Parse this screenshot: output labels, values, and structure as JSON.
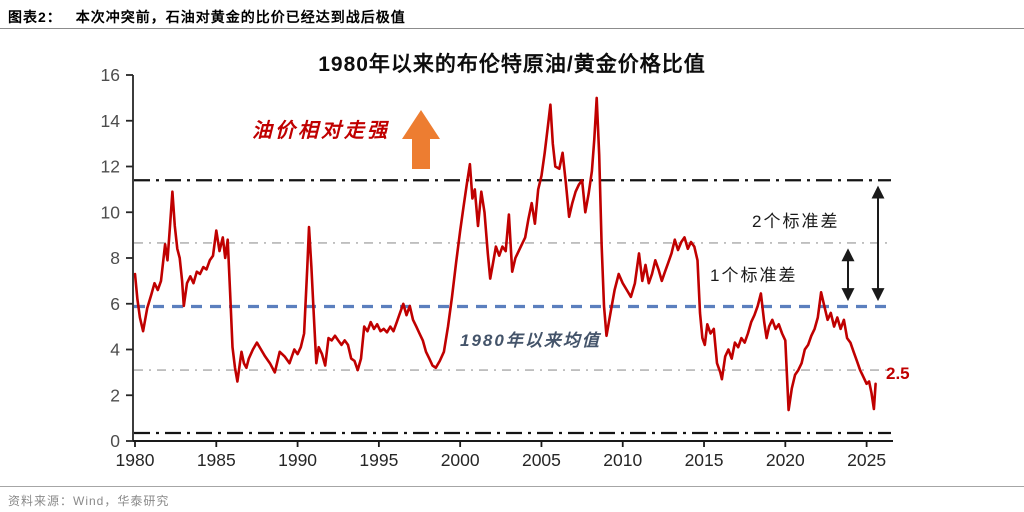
{
  "header": {
    "figure_no": "图表2：",
    "caption": "本次冲突前，石油对黄金的比价已经达到战后极值"
  },
  "footer": {
    "source": "资料来源：Wind，华泰研究"
  },
  "chart_data": {
    "type": "line",
    "title": "1980年以来的布伦特原油/黄金价格比值",
    "series_name": "布伦特原油/黄金价格比值",
    "xlim": [
      1980,
      2026.5
    ],
    "ylim": [
      0,
      16
    ],
    "yticks": [
      0,
      2,
      4,
      6,
      8,
      10,
      12,
      14,
      16
    ],
    "xticks": [
      1980,
      1985,
      1990,
      1995,
      2000,
      2005,
      2010,
      2015,
      2020,
      2025
    ],
    "grid": false,
    "legend": "none",
    "line_color": "#C00000",
    "arrow_color": "#ED7D31",
    "reference_lines": [
      {
        "name": "plus-2sd",
        "value": 11.4,
        "style": "black-dashdot"
      },
      {
        "name": "plus-1sd",
        "value": 8.66,
        "style": "gray-dashdot"
      },
      {
        "name": "mean",
        "value": 5.88,
        "style": "blue-dashed"
      },
      {
        "name": "minus-1sd",
        "value": 3.1,
        "style": "gray-dashdot"
      },
      {
        "name": "minus-2sd",
        "value": 0.35,
        "style": "black-dashdot"
      }
    ],
    "annotations": {
      "strength_label": "油价相对走强",
      "mean_label": "1980年以来均值",
      "sd2_label": "2个标准差",
      "sd1_label": "1个标准差",
      "end_value_label": "2.5"
    },
    "points": [
      [
        1980,
        7.3
      ],
      [
        1980.15,
        6.2
      ],
      [
        1980.3,
        5.4
      ],
      [
        1980.5,
        4.8
      ],
      [
        1980.75,
        5.8
      ],
      [
        1981,
        6.4
      ],
      [
        1981.2,
        6.9
      ],
      [
        1981.4,
        6.6
      ],
      [
        1981.6,
        7
      ],
      [
        1981.85,
        8.6
      ],
      [
        1982,
        7.9
      ],
      [
        1982.15,
        9.4
      ],
      [
        1982.3,
        10.9
      ],
      [
        1982.45,
        9.4
      ],
      [
        1982.6,
        8.4
      ],
      [
        1982.75,
        8
      ],
      [
        1982.9,
        7
      ],
      [
        1983,
        5.9
      ],
      [
        1983.2,
        6.9
      ],
      [
        1983.4,
        7.2
      ],
      [
        1983.6,
        6.9
      ],
      [
        1983.8,
        7.4
      ],
      [
        1984,
        7.3
      ],
      [
        1984.2,
        7.6
      ],
      [
        1984.4,
        7.5
      ],
      [
        1984.6,
        7.9
      ],
      [
        1984.8,
        8.1
      ],
      [
        1985,
        9.2
      ],
      [
        1985.2,
        8.3
      ],
      [
        1985.4,
        8.9
      ],
      [
        1985.55,
        8
      ],
      [
        1985.7,
        8.8
      ],
      [
        1985.85,
        6.5
      ],
      [
        1986,
        4.1
      ],
      [
        1986.15,
        3.2
      ],
      [
        1986.3,
        2.6
      ],
      [
        1986.45,
        3.4
      ],
      [
        1986.55,
        3.9
      ],
      [
        1986.7,
        3.4
      ],
      [
        1986.85,
        3.2
      ],
      [
        1987,
        3.6
      ],
      [
        1987.25,
        4
      ],
      [
        1987.5,
        4.3
      ],
      [
        1987.75,
        4
      ],
      [
        1988,
        3.7
      ],
      [
        1988.3,
        3.4
      ],
      [
        1988.6,
        3
      ],
      [
        1988.9,
        3.9
      ],
      [
        1989.2,
        3.7
      ],
      [
        1989.5,
        3.4
      ],
      [
        1989.8,
        4
      ],
      [
        1990,
        3.8
      ],
      [
        1990.2,
        4.1
      ],
      [
        1990.4,
        4.7
      ],
      [
        1990.6,
        7.6
      ],
      [
        1990.7,
        9.35
      ],
      [
        1990.85,
        7.6
      ],
      [
        1991,
        5.5
      ],
      [
        1991.15,
        3.4
      ],
      [
        1991.3,
        4.1
      ],
      [
        1991.5,
        3.8
      ],
      [
        1991.7,
        3.3
      ],
      [
        1991.9,
        4.5
      ],
      [
        1992.1,
        4.4
      ],
      [
        1992.3,
        4.6
      ],
      [
        1992.5,
        4.4
      ],
      [
        1992.7,
        4.2
      ],
      [
        1992.9,
        4.4
      ],
      [
        1993.1,
        4.2
      ],
      [
        1993.3,
        3.6
      ],
      [
        1993.5,
        3.5
      ],
      [
        1993.7,
        3.1
      ],
      [
        1993.9,
        3.6
      ],
      [
        1994.1,
        5
      ],
      [
        1994.3,
        4.8
      ],
      [
        1994.5,
        5.2
      ],
      [
        1994.7,
        4.9
      ],
      [
        1994.9,
        5.1
      ],
      [
        1995.1,
        4.8
      ],
      [
        1995.3,
        4.9
      ],
      [
        1995.5,
        4.75
      ],
      [
        1995.7,
        5
      ],
      [
        1995.9,
        4.8
      ],
      [
        1996.1,
        5.2
      ],
      [
        1996.3,
        5.6
      ],
      [
        1996.5,
        6
      ],
      [
        1996.7,
        5.5
      ],
      [
        1996.9,
        5.9
      ],
      [
        1997.1,
        5.3
      ],
      [
        1997.3,
        5
      ],
      [
        1997.5,
        4.7
      ],
      [
        1997.7,
        4.4
      ],
      [
        1997.9,
        3.9
      ],
      [
        1998.1,
        3.6
      ],
      [
        1998.3,
        3.3
      ],
      [
        1998.5,
        3.2
      ],
      [
        1998.75,
        3.5
      ],
      [
        1999,
        3.9
      ],
      [
        1999.25,
        5
      ],
      [
        1999.5,
        6.3
      ],
      [
        1999.75,
        7.8
      ],
      [
        2000,
        9.2
      ],
      [
        2000.2,
        10.2
      ],
      [
        2000.4,
        11.2
      ],
      [
        2000.6,
        12.1
      ],
      [
        2000.75,
        10.6
      ],
      [
        2000.9,
        11
      ],
      [
        2001.1,
        9.4
      ],
      [
        2001.3,
        10.9
      ],
      [
        2001.5,
        10
      ],
      [
        2001.7,
        8.2
      ],
      [
        2001.85,
        7.1
      ],
      [
        2002,
        7.7
      ],
      [
        2002.2,
        8.5
      ],
      [
        2002.4,
        8.1
      ],
      [
        2002.6,
        8.5
      ],
      [
        2002.8,
        8.3
      ],
      [
        2003,
        9.9
      ],
      [
        2003.2,
        7.4
      ],
      [
        2003.4,
        8
      ],
      [
        2003.6,
        8.3
      ],
      [
        2003.8,
        8.6
      ],
      [
        2004,
        8.9
      ],
      [
        2004.2,
        9.7
      ],
      [
        2004.4,
        10.4
      ],
      [
        2004.6,
        9.5
      ],
      [
        2004.8,
        11
      ],
      [
        2005,
        11.6
      ],
      [
        2005.2,
        12.6
      ],
      [
        2005.4,
        13.8
      ],
      [
        2005.55,
        14.7
      ],
      [
        2005.7,
        13
      ],
      [
        2005.85,
        12
      ],
      [
        2006.1,
        11.9
      ],
      [
        2006.3,
        12.6
      ],
      [
        2006.5,
        11.3
      ],
      [
        2006.7,
        9.8
      ],
      [
        2006.9,
        10.4
      ],
      [
        2007.1,
        10.9
      ],
      [
        2007.3,
        11.2
      ],
      [
        2007.5,
        11.4
      ],
      [
        2007.7,
        10
      ],
      [
        2007.9,
        10.8
      ],
      [
        2008.1,
        11.8
      ],
      [
        2008.25,
        13.2
      ],
      [
        2008.4,
        15
      ],
      [
        2008.55,
        12.5
      ],
      [
        2008.7,
        8.6
      ],
      [
        2008.85,
        5.9
      ],
      [
        2009,
        4.6
      ],
      [
        2009.25,
        5.6
      ],
      [
        2009.5,
        6.6
      ],
      [
        2009.75,
        7.3
      ],
      [
        2010,
        6.9
      ],
      [
        2010.25,
        6.6
      ],
      [
        2010.5,
        6.3
      ],
      [
        2010.75,
        6.9
      ],
      [
        2011,
        8.2
      ],
      [
        2011.2,
        7
      ],
      [
        2011.4,
        7.7
      ],
      [
        2011.6,
        6.9
      ],
      [
        2011.8,
        7.3
      ],
      [
        2012,
        7.9
      ],
      [
        2012.2,
        7.5
      ],
      [
        2012.4,
        7
      ],
      [
        2012.6,
        7.4
      ],
      [
        2012.8,
        7.8
      ],
      [
        2013,
        8.2
      ],
      [
        2013.2,
        8.8
      ],
      [
        2013.4,
        8.35
      ],
      [
        2013.6,
        8.7
      ],
      [
        2013.8,
        8.9
      ],
      [
        2014,
        8.4
      ],
      [
        2014.2,
        8.7
      ],
      [
        2014.4,
        8.5
      ],
      [
        2014.6,
        7.9
      ],
      [
        2014.75,
        5.6
      ],
      [
        2014.9,
        4.5
      ],
      [
        2015.05,
        4.2
      ],
      [
        2015.2,
        5.1
      ],
      [
        2015.4,
        4.7
      ],
      [
        2015.6,
        4.9
      ],
      [
        2015.8,
        3.4
      ],
      [
        2016,
        3
      ],
      [
        2016.1,
        2.7
      ],
      [
        2016.3,
        3.7
      ],
      [
        2016.5,
        4
      ],
      [
        2016.7,
        3.6
      ],
      [
        2016.9,
        4.3
      ],
      [
        2017.1,
        4.1
      ],
      [
        2017.3,
        4.5
      ],
      [
        2017.5,
        4.3
      ],
      [
        2017.7,
        4.7
      ],
      [
        2017.9,
        5.2
      ],
      [
        2018.1,
        5.5
      ],
      [
        2018.3,
        5.9
      ],
      [
        2018.5,
        6.45
      ],
      [
        2018.7,
        5.2
      ],
      [
        2018.85,
        4.5
      ],
      [
        2019,
        5
      ],
      [
        2019.2,
        5.3
      ],
      [
        2019.4,
        4.9
      ],
      [
        2019.6,
        5.1
      ],
      [
        2019.8,
        4.7
      ],
      [
        2020,
        4.4
      ],
      [
        2020.2,
        1.35
      ],
      [
        2020.4,
        2.3
      ],
      [
        2020.6,
        2.9
      ],
      [
        2020.8,
        3.1
      ],
      [
        2021,
        3.4
      ],
      [
        2021.2,
        4
      ],
      [
        2021.4,
        4.2
      ],
      [
        2021.6,
        4.6
      ],
      [
        2021.8,
        4.9
      ],
      [
        2022,
        5.4
      ],
      [
        2022.2,
        6.5
      ],
      [
        2022.4,
        5.9
      ],
      [
        2022.6,
        5.3
      ],
      [
        2022.8,
        5.6
      ],
      [
        2023,
        5
      ],
      [
        2023.2,
        5.4
      ],
      [
        2023.4,
        4.9
      ],
      [
        2023.6,
        5.3
      ],
      [
        2023.8,
        4.5
      ],
      [
        2024,
        4.3
      ],
      [
        2024.2,
        3.9
      ],
      [
        2024.4,
        3.5
      ],
      [
        2024.6,
        3.1
      ],
      [
        2024.8,
        2.8
      ],
      [
        2025,
        2.5
      ],
      [
        2025.15,
        2.6
      ],
      [
        2025.3,
        2.1
      ],
      [
        2025.45,
        1.4
      ],
      [
        2025.55,
        2.5
      ]
    ]
  }
}
